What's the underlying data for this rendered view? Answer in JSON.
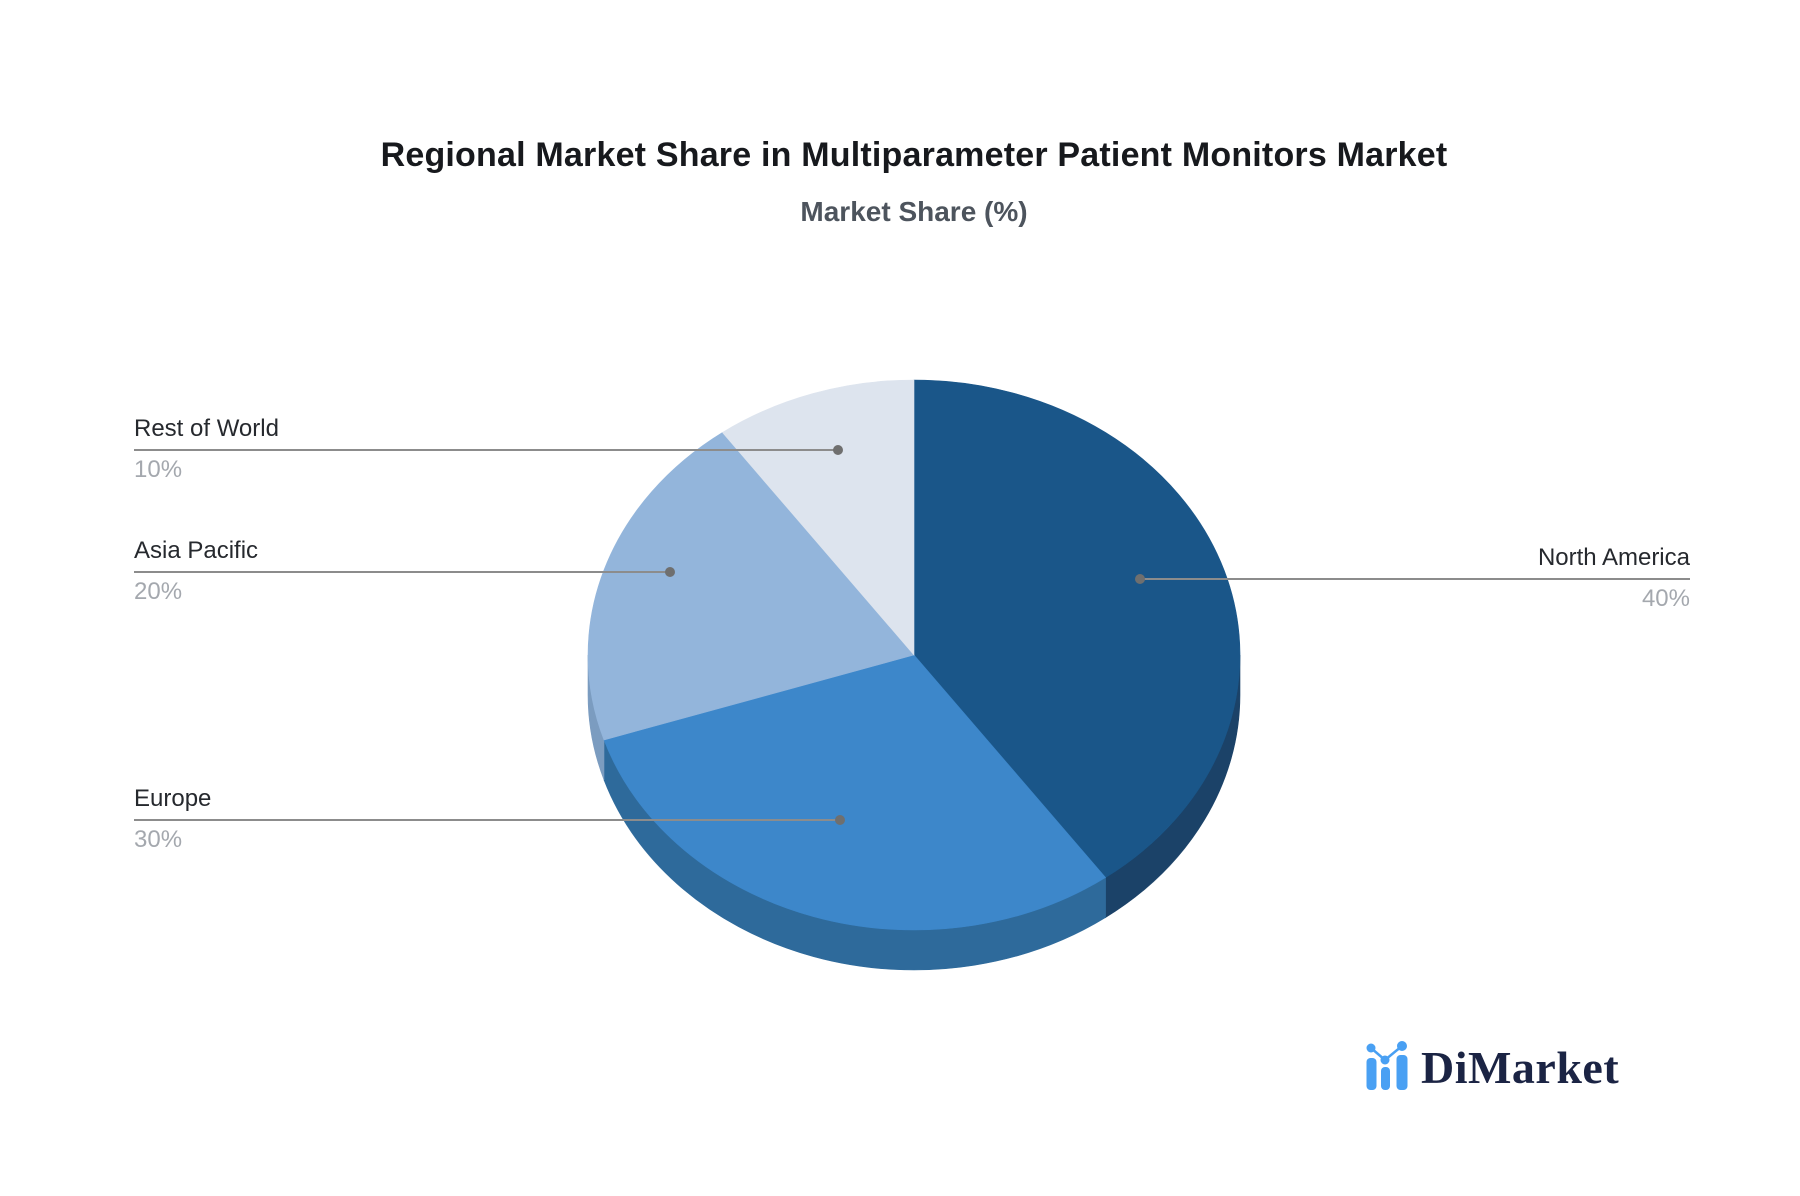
{
  "chart_data": {
    "type": "pie",
    "title": "Regional Market Share in Multiparameter Patient Monitors Market",
    "subtitle": "Market Share (%)",
    "unit": "%",
    "effect": "3d-depth",
    "start_angle": "12-oclock, clockwise",
    "legend_position": "callout-labels",
    "slices": [
      {
        "label": "North America",
        "value": 40,
        "pct_label": "40%",
        "color": "#1a5689",
        "depth_color": "#1b4268",
        "callout_side": "right"
      },
      {
        "label": "Europe",
        "value": 30,
        "pct_label": "30%",
        "color": "#3d87ca",
        "depth_color": "#2e6a9b",
        "callout_side": "left"
      },
      {
        "label": "Asia Pacific",
        "value": 20,
        "pct_label": "20%",
        "color": "#93b5db",
        "depth_color": "#7b9cc0",
        "callout_side": "left"
      },
      {
        "label": "Rest of World",
        "value": 10,
        "pct_label": "10%",
        "color": "#dde4ee",
        "depth_color": "#c2cbdb",
        "callout_side": "left"
      }
    ]
  },
  "colors": {
    "background": "#ffffff",
    "title_text": "#17191d",
    "subtitle_text": "#4d545d",
    "label_text": "#26292e",
    "pct_text": "#a4a8ae",
    "leader_line": "#8c8c8c",
    "leader_dot": "#6f6f6f"
  },
  "branding": {
    "logo_text": "DiMarket",
    "logo_icon": "bar-line-chart-icon",
    "logo_icon_color": "#49a0f3",
    "logo_text_color": "#1b2444"
  }
}
